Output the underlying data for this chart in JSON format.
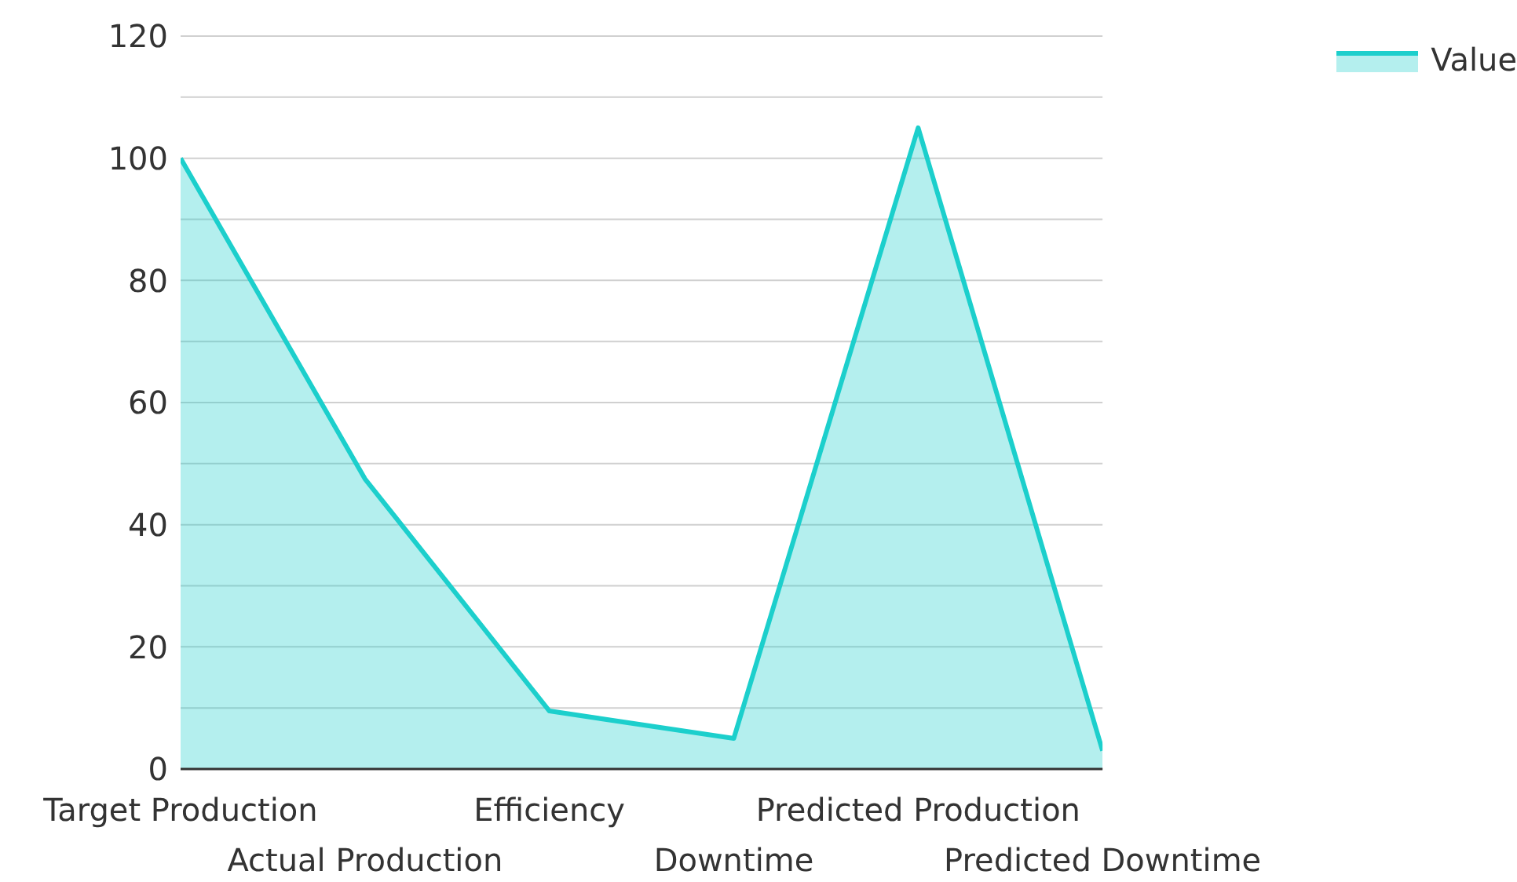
{
  "chart_data": {
    "type": "area",
    "categories": [
      "Target Production",
      "Actual Production",
      "Efficiency",
      "Downtime",
      "Predicted Production",
      "Predicted Downtime"
    ],
    "series": [
      {
        "name": "Value",
        "color": "#1ccfcc",
        "values": [
          100,
          47.5,
          9.5,
          5,
          105,
          3
        ]
      }
    ],
    "ylim": [
      0,
      120
    ],
    "yticks": [
      0,
      {
        "value": 10,
        "label": null
      },
      20,
      {
        "value": 30,
        "label": null
      },
      40,
      {
        "value": 50,
        "label": null
      },
      60,
      {
        "value": 70,
        "label": null
      },
      80,
      {
        "value": 90,
        "label": null
      },
      100,
      {
        "value": 110,
        "label": null
      },
      120
    ],
    "grid": "y",
    "legend": "top right"
  }
}
